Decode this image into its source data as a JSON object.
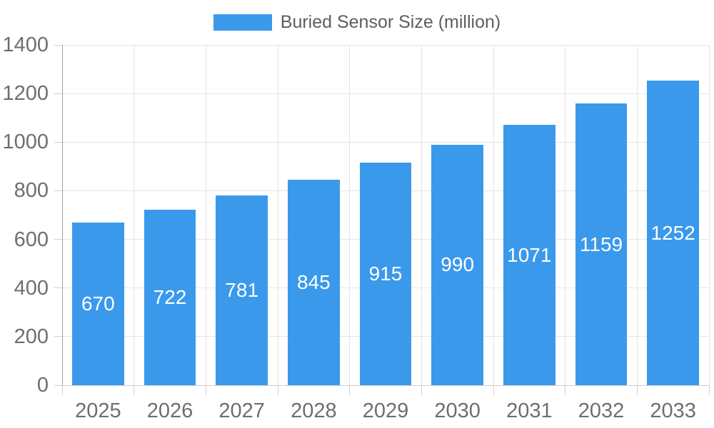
{
  "chart_data": {
    "type": "bar",
    "title": "Buried Sensor Size (million)",
    "categories": [
      "2025",
      "2026",
      "2027",
      "2028",
      "2029",
      "2030",
      "2031",
      "2032",
      "2033"
    ],
    "series": [
      {
        "name": "Buried Sensor Size (million)",
        "values": [
          670,
          722,
          781,
          845,
          915,
          990,
          1071,
          1159,
          1252
        ]
      }
    ],
    "value_labels_shown": true,
    "ylim": [
      0,
      1400
    ],
    "ytick_interval": 200,
    "ytick_labels": [
      "0",
      "200",
      "400",
      "600",
      "800",
      "1000",
      "1200",
      "1400"
    ],
    "xlabel": "",
    "ylabel": "",
    "grid": "both",
    "legend_position": "top-center",
    "colors": {
      "bar": "#3b99ec",
      "grid_line": "#e5e5e5",
      "y_axis_line": "#a0a0a0",
      "x_axis_line": "#d0d0d0",
      "tick": "#d0d0d0",
      "tick_label": "#6e6e6e",
      "legend_label": "#5e5e5e",
      "value_label": "#ffffff",
      "background": "#ffffff"
    }
  },
  "legend": {
    "label": "Buried Sensor Size (million)"
  }
}
